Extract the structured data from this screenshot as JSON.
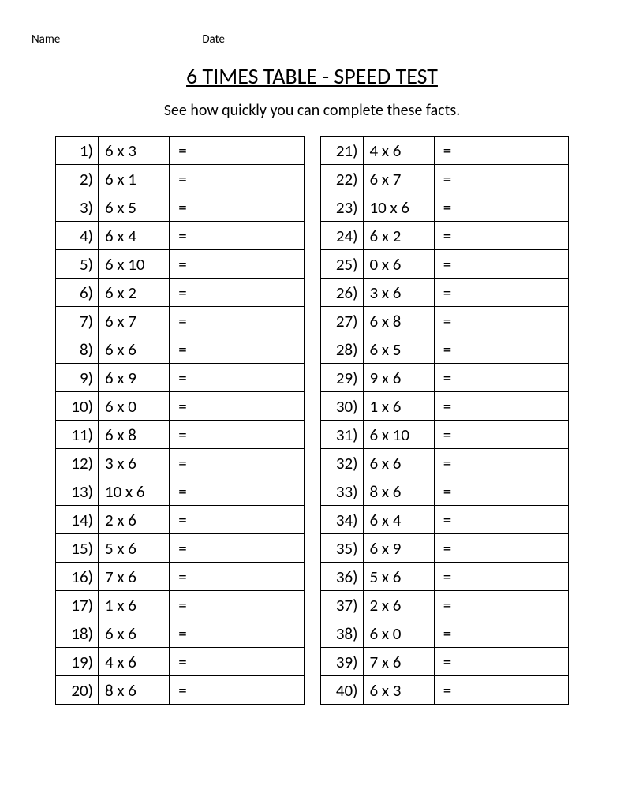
{
  "header": {
    "name_label": "Name",
    "date_label": "Date"
  },
  "title": "6 TIMES TABLE - SPEED TEST",
  "subtitle": "See how quickly you can complete these facts.",
  "equals": "=",
  "left": [
    {
      "n": "1)",
      "p": "6 x 3"
    },
    {
      "n": "2)",
      "p": "6 x 1"
    },
    {
      "n": "3)",
      "p": "6 x 5"
    },
    {
      "n": "4)",
      "p": "6 x 4"
    },
    {
      "n": "5)",
      "p": "6 x 10"
    },
    {
      "n": "6)",
      "p": "6 x 2"
    },
    {
      "n": "7)",
      "p": "6 x 7"
    },
    {
      "n": "8)",
      "p": "6 x 6"
    },
    {
      "n": "9)",
      "p": "6 x 9"
    },
    {
      "n": "10)",
      "p": "6 x 0"
    },
    {
      "n": "11)",
      "p": "6 x 8"
    },
    {
      "n": "12)",
      "p": "3 x 6"
    },
    {
      "n": "13)",
      "p": "10 x 6"
    },
    {
      "n": "14)",
      "p": "2 x 6"
    },
    {
      "n": "15)",
      "p": "5 x 6"
    },
    {
      "n": "16)",
      "p": "7 x 6"
    },
    {
      "n": "17)",
      "p": "1 x 6"
    },
    {
      "n": "18)",
      "p": "6 x 6"
    },
    {
      "n": "19)",
      "p": "4 x 6"
    },
    {
      "n": "20)",
      "p": "8 x 6"
    }
  ],
  "right": [
    {
      "n": "21)",
      "p": "4 x 6"
    },
    {
      "n": "22)",
      "p": "6 x 7"
    },
    {
      "n": "23)",
      "p": "10 x 6"
    },
    {
      "n": "24)",
      "p": "6 x 2"
    },
    {
      "n": "25)",
      "p": "0 x 6"
    },
    {
      "n": "26)",
      "p": "3 x 6"
    },
    {
      "n": "27)",
      "p": "6 x 8"
    },
    {
      "n": "28)",
      "p": "6 x 5"
    },
    {
      "n": "29)",
      "p": "9 x 6"
    },
    {
      "n": "30)",
      "p": "1 x 6"
    },
    {
      "n": "31)",
      "p": "6 x 10"
    },
    {
      "n": "32)",
      "p": "6 x 6"
    },
    {
      "n": "33)",
      "p": "8 x 6"
    },
    {
      "n": "34)",
      "p": "6 x 4"
    },
    {
      "n": "35)",
      "p": "6 x 9"
    },
    {
      "n": "36)",
      "p": "5 x 6"
    },
    {
      "n": "37)",
      "p": "2 x 6"
    },
    {
      "n": "38)",
      "p": "6 x 0"
    },
    {
      "n": "39)",
      "p": "7 x 6"
    },
    {
      "n": "40)",
      "p": "6 x 3"
    }
  ]
}
